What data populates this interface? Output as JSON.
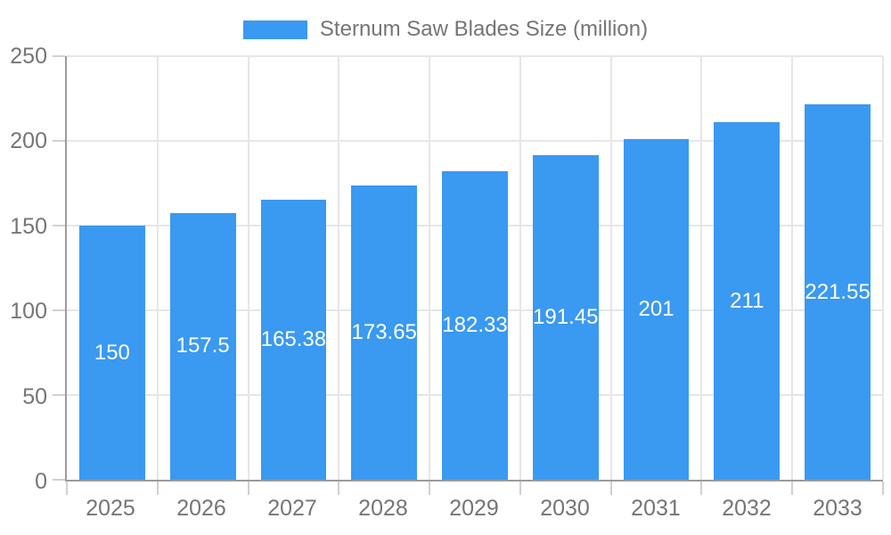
{
  "chart_data": {
    "type": "bar",
    "title": "Sternum Saw Blades Size (million)",
    "categories": [
      "2025",
      "2026",
      "2027",
      "2028",
      "2029",
      "2030",
      "2031",
      "2032",
      "2033"
    ],
    "values": [
      150,
      157.5,
      165.38,
      173.65,
      182.33,
      191.45,
      201,
      211,
      221.55
    ],
    "value_labels": [
      "150",
      "157.5",
      "165.38",
      "173.65",
      "182.33",
      "191.45",
      "201",
      "211",
      "221.55"
    ],
    "xlabel": "",
    "ylabel": "",
    "ylim": [
      0,
      250
    ],
    "yticks": [
      0,
      50,
      100,
      150,
      200,
      250
    ],
    "grid": true,
    "legend_position": "top",
    "legend": [
      {
        "label": "Sternum Saw Blades Size (million)",
        "color": "#3a99f0"
      }
    ],
    "colors": {
      "bar": "#3a99f0",
      "bar_label": "#ffffff",
      "axis_line": "#9b9b9b",
      "grid_line": "#e6e6e6",
      "tick_line": "#d0d0d0",
      "text": "#757575",
      "background": "#ffffff"
    }
  }
}
